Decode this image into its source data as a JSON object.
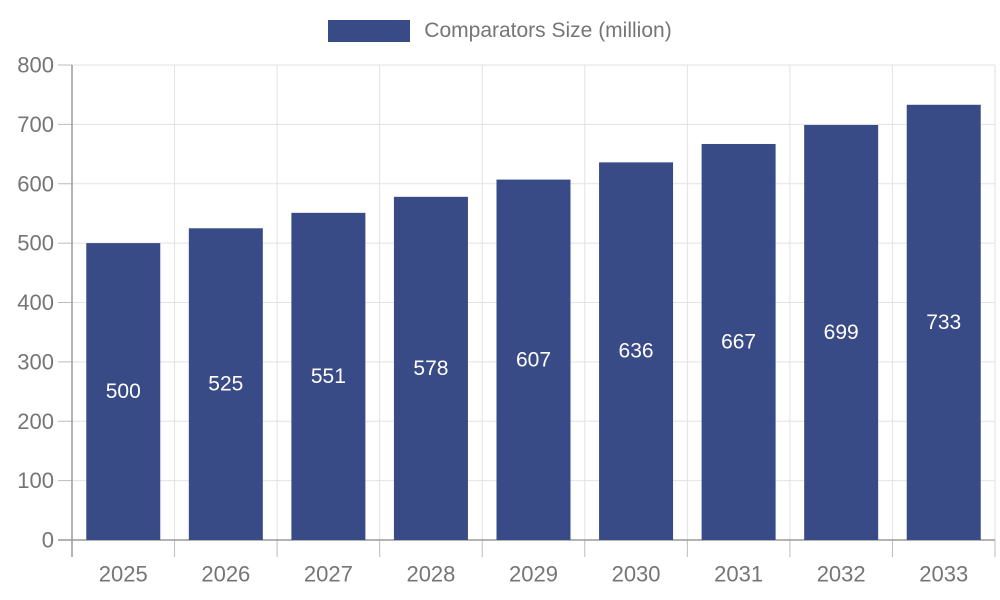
{
  "legend": {
    "items": [
      "Comparators Size (million)"
    ]
  },
  "colors": {
    "bar": "#394b87",
    "grid": "#e2e2e7",
    "axis": "#9a9a9a",
    "tick": "#bbbbbb",
    "axis_label": "#757575",
    "legend_label": "#757575",
    "value_label": "#ffffff",
    "background": "#ffffff"
  },
  "chart_data": {
    "type": "bar",
    "title": "Comparators Size (million)",
    "categories": [
      "2025",
      "2026",
      "2027",
      "2028",
      "2029",
      "2030",
      "2031",
      "2032",
      "2033"
    ],
    "series": [
      {
        "name": "Comparators Size (million)",
        "values": [
          500,
          525,
          551,
          578,
          607,
          636,
          667,
          699,
          733
        ]
      }
    ],
    "xlabel": "",
    "ylabel": "",
    "ylim": [
      0,
      800
    ],
    "yticks": [
      0,
      100,
      200,
      300,
      400,
      500,
      600,
      700,
      800
    ],
    "grid": true,
    "legend_position": "top-center",
    "value_label_position": "inside-center"
  }
}
